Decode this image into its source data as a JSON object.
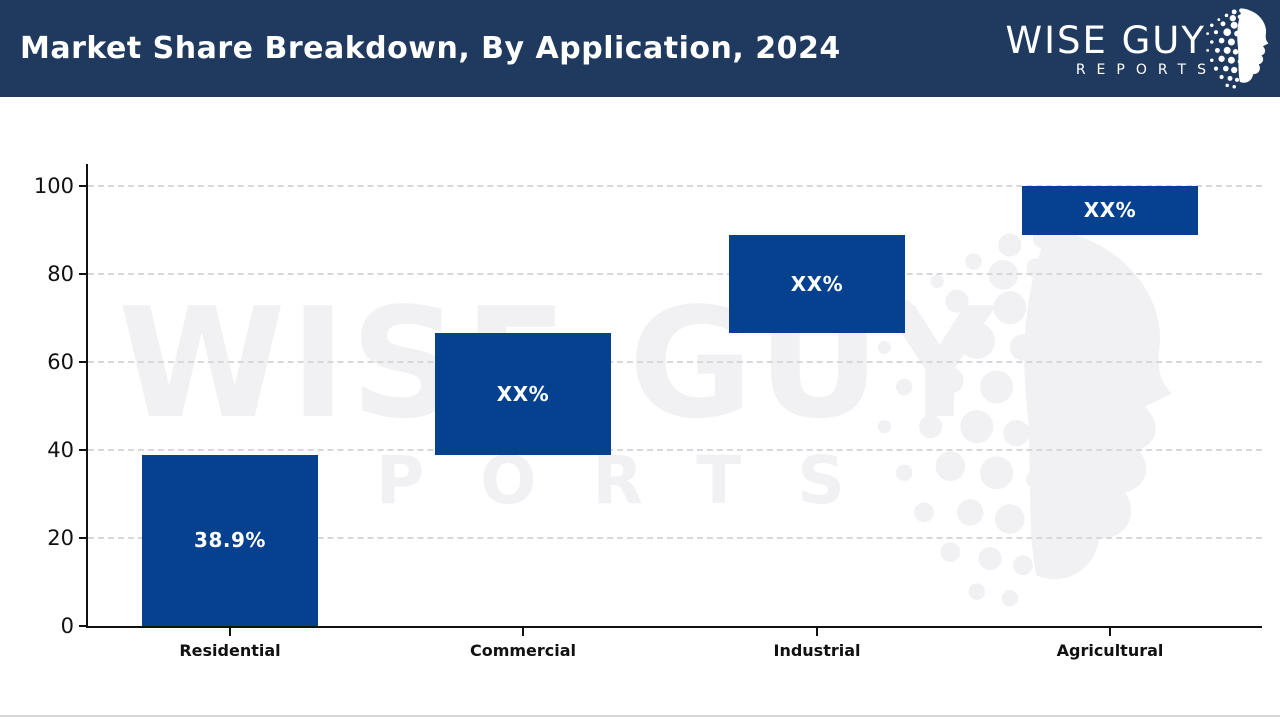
{
  "header": {
    "title": "Market Share Breakdown, By Application, 2024",
    "logo": {
      "line1": "WISE GUY",
      "line2": "REPORTS"
    }
  },
  "watermark": {
    "line1": "WISE GUY",
    "line2": "REPORTS"
  },
  "colors": {
    "header_bg": "#20395e",
    "bar_blue": "#05418f",
    "grid_gray": "#d8d8d8",
    "watermark_gray": "#f1f1f3",
    "axis_black": "#111111",
    "bar_label_white": "#ffffff"
  },
  "chart_data": {
    "type": "bar",
    "subtype": "waterfall-breakdown",
    "title": "Market Share Breakdown, By Application, 2024",
    "categories": [
      "Residential",
      "Commercial",
      "Industrial",
      "Agricultural"
    ],
    "segments": [
      {
        "category": "Residential",
        "start": 0,
        "end": 38.9,
        "value_label": "38.9%"
      },
      {
        "category": "Commercial",
        "start": 38.9,
        "end": 66.6,
        "value_label": "XX%"
      },
      {
        "category": "Industrial",
        "start": 66.6,
        "end": 88.9,
        "value_label": "XX%"
      },
      {
        "category": "Agricultural",
        "start": 88.9,
        "end": 100,
        "value_label": "XX%"
      }
    ],
    "xlabel": "",
    "ylabel": "",
    "ylim": [
      0,
      105
    ],
    "yticks": [
      0,
      20,
      40,
      60,
      80,
      100
    ],
    "grid": "horizontal-dashed",
    "legend": "none"
  }
}
